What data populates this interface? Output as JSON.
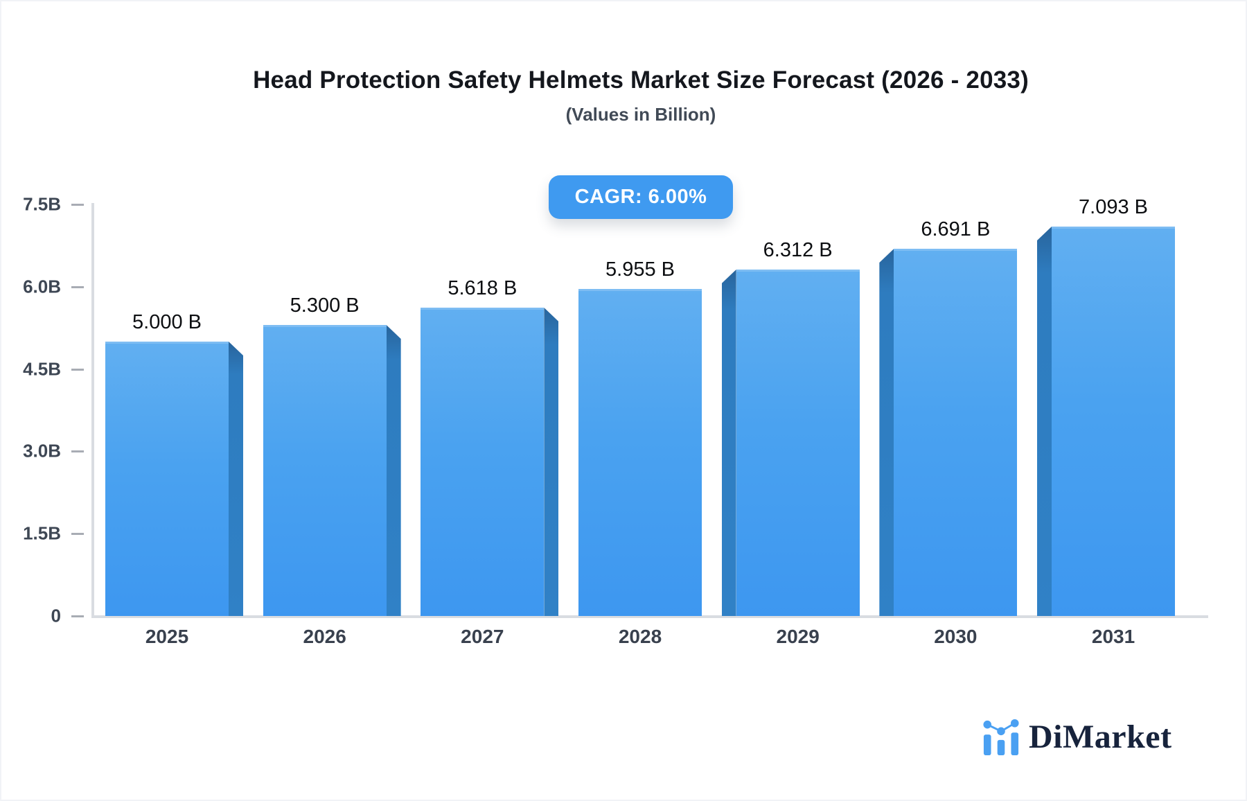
{
  "page": {
    "title": "Head Protection Safety Helmets Market Size Forecast (2026 - 2033)",
    "subtitle": "(Values in Billion)"
  },
  "badge": {
    "label": "CAGR: 6.00%"
  },
  "chart_data": {
    "type": "bar",
    "title": "Head Protection Safety Helmets Market Size Forecast (2026 - 2033)",
    "subtitle": "(Values in Billion)",
    "annotation": "CAGR: 6.00%",
    "categories": [
      "2025",
      "2026",
      "2027",
      "2028",
      "2029",
      "2030",
      "2031"
    ],
    "values": [
      5.0,
      5.3,
      5.618,
      5.955,
      6.312,
      6.691,
      7.093
    ],
    "value_labels": [
      "5.000 B",
      "5.300 B",
      "5.618 B",
      "5.955 B",
      "6.312 B",
      "6.691 B",
      "7.093 B"
    ],
    "unit": "Billion",
    "ylim": [
      0,
      7.5
    ],
    "yticks": [
      {
        "label": "7.5B",
        "value": 7.5
      },
      {
        "label": "6.0B",
        "value": 6.0
      },
      {
        "label": "4.5B",
        "value": 4.5
      },
      {
        "label": "3.0B",
        "value": 3.0
      },
      {
        "label": "1.5B",
        "value": 1.5
      },
      {
        "label": "0",
        "value": 0.0
      }
    ],
    "grid": false,
    "legend": "none",
    "bar_style": "3d-perspective-toward-center"
  },
  "branding": {
    "name": "DiMarket",
    "icon": "bar-chart-logo-icon"
  },
  "colors": {
    "accent_badge": "#3f9af0",
    "bar_face": "#4aa0f0",
    "bar_side": "#2f7ec2",
    "axis_line": "#d9dce1",
    "tick_dash": "#a8acb4",
    "title_text": "#14171d",
    "axis_text": "#3e4754",
    "logo_navy": "#17233c"
  }
}
